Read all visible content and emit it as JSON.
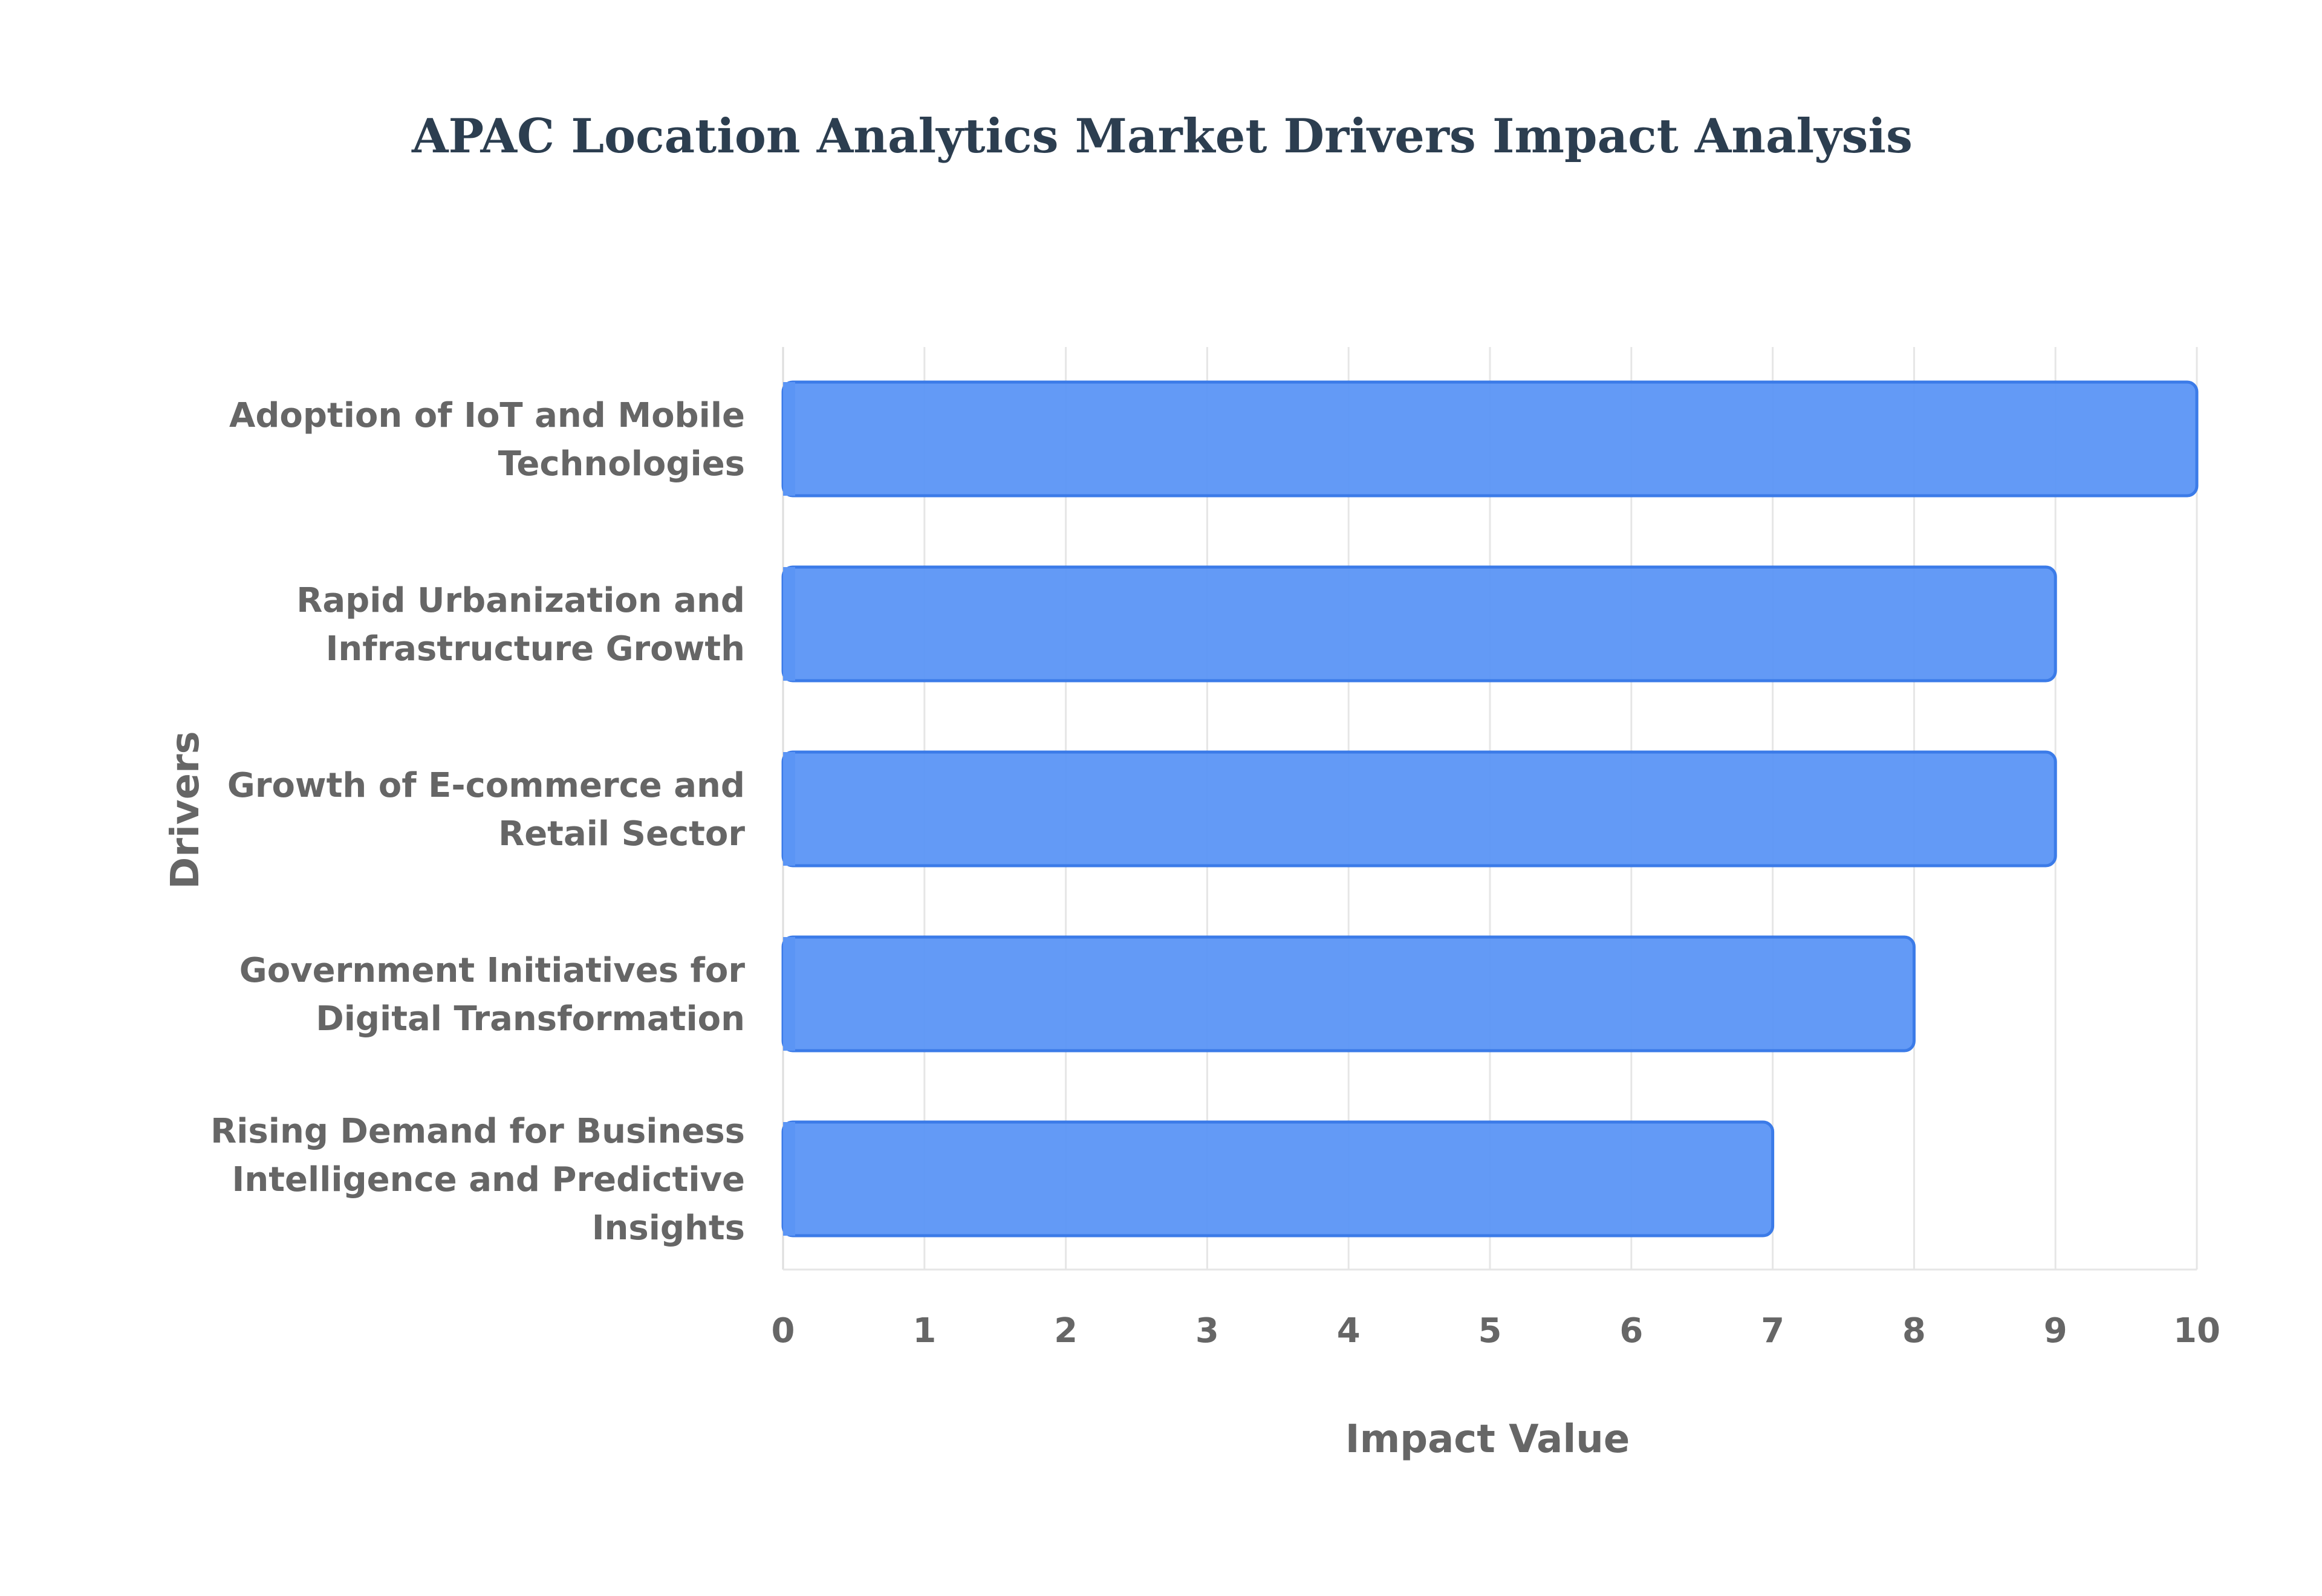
{
  "chart_data": {
    "type": "bar",
    "orientation": "horizontal",
    "title": "APAC Location Analytics Market Drivers Impact Analysis",
    "xlabel": "Impact Value",
    "ylabel": "Drivers",
    "xlim": [
      0,
      10
    ],
    "xticks": [
      "0",
      "1",
      "2",
      "3",
      "4",
      "5",
      "6",
      "7",
      "8",
      "9",
      "10"
    ],
    "grid": true,
    "legend": "none",
    "bar_color": "#5b95f5",
    "bar_border_color": "#3b7be8",
    "categories": [
      [
        "Adoption of IoT and Mobile",
        "Technologies"
      ],
      [
        "Rapid Urbanization and",
        "Infrastructure Growth"
      ],
      [
        "Growth of E-commerce and",
        "Retail Sector"
      ],
      [
        "Government Initiatives for",
        "Digital Transformation"
      ],
      [
        "Rising Demand for Business",
        "Intelligence and Predictive",
        "Insights"
      ]
    ],
    "values": [
      10,
      9,
      9,
      8,
      7
    ]
  }
}
